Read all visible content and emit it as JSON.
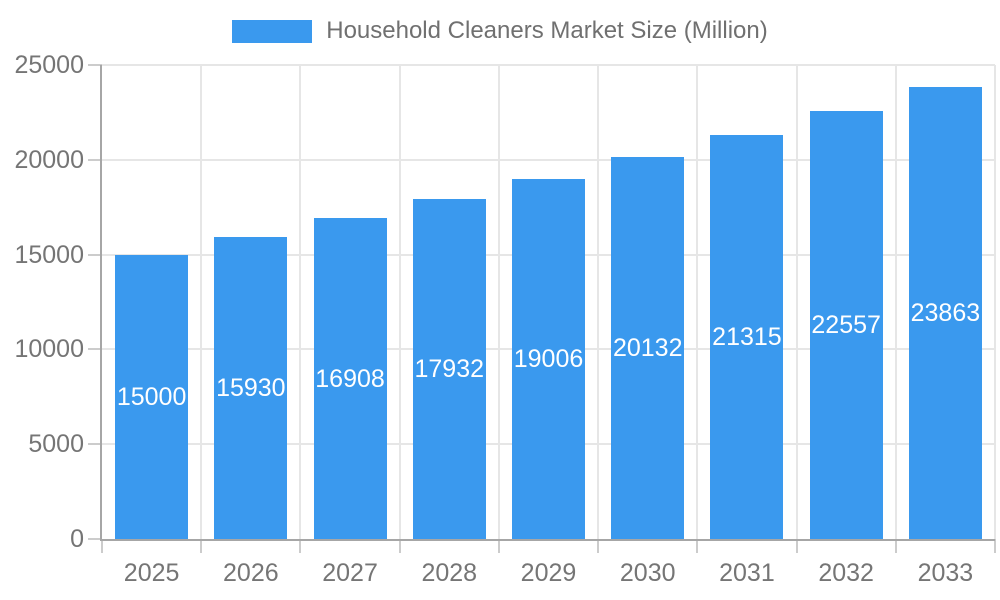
{
  "chart_data": {
    "type": "bar",
    "title": "",
    "legend": "Household Cleaners Market Size (Million)",
    "legend_position": "top",
    "categories": [
      "2025",
      "2026",
      "2027",
      "2028",
      "2029",
      "2030",
      "2031",
      "2032",
      "2033"
    ],
    "values": [
      15000,
      15930,
      16908,
      17932,
      19006,
      20132,
      21315,
      22557,
      23863
    ],
    "value_labels": [
      "15000",
      "15930",
      "16908",
      "17932",
      "19006",
      "20132",
      "21315",
      "22557",
      "23863"
    ],
    "xlabel": "",
    "ylabel": "",
    "ylim": [
      0,
      25000
    ],
    "yticks": [
      0,
      5000,
      10000,
      15000,
      20000,
      25000
    ],
    "ytick_labels": [
      "0",
      "5000",
      "10000",
      "15000",
      "20000",
      "25000"
    ],
    "grid": true,
    "colors": {
      "bar": "#3A99EE",
      "grid": "#E6E6E6",
      "axis": "#A6A6A6",
      "tick": "#CCCCCC",
      "tick_text": "#757575",
      "legend_text": "#707070",
      "value_text": "#FFFFFF",
      "background": "#FFFFFF"
    }
  }
}
